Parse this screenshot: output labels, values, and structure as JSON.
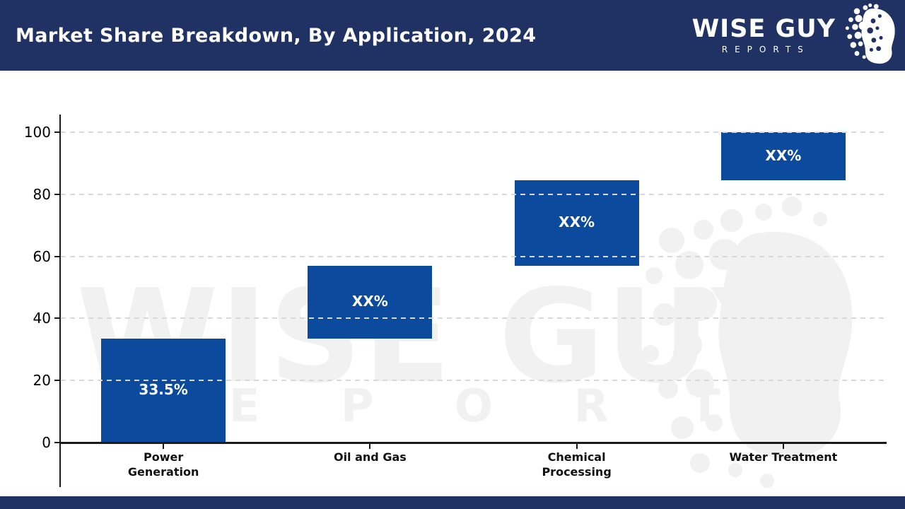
{
  "header": {
    "title": "Market Share Breakdown, By Application, 2024",
    "logo": {
      "line1": "WISE GUY",
      "line2": "REPORTS"
    }
  },
  "watermark": {
    "line1": "WISE GUY",
    "line2": "REPORTS"
  },
  "colors": {
    "header_bg": "#1f3263",
    "footer_bg": "#1f3263",
    "bar": "#0c4a9d",
    "grid": "#d9d9d9",
    "axis": "#1a1a1a",
    "bar_label_text": "#ffffff",
    "watermark": "#f1f1f1"
  },
  "chart_data": {
    "type": "waterfall",
    "title": "Market Share Breakdown, By Application, 2024",
    "categories": [
      "Power Generation",
      "Oil and Gas",
      "Chemical Processing",
      "Water Treatment"
    ],
    "segments": [
      {
        "category": "Power Generation",
        "start": 0,
        "end": 33.5,
        "label": "33.5%"
      },
      {
        "category": "Oil and Gas",
        "start": 33.5,
        "end": 57,
        "label": "XX%"
      },
      {
        "category": "Chemical Processing",
        "start": 57,
        "end": 84.5,
        "label": "XX%"
      },
      {
        "category": "Water Treatment",
        "start": 84.5,
        "end": 100,
        "label": "XX%"
      }
    ],
    "ylim": [
      0,
      100
    ],
    "yticks": [
      "0",
      "20",
      "40",
      "60",
      "80",
      "100"
    ],
    "grid": "horizontal-dashed",
    "legend": "none"
  }
}
